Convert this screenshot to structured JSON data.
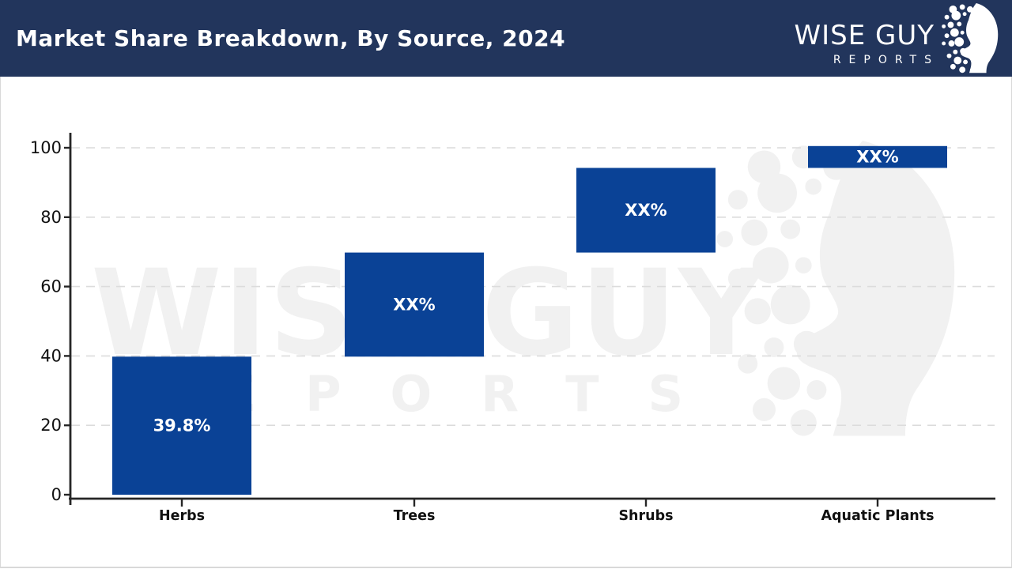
{
  "header": {
    "title": "Market Share Breakdown, By Source, 2024",
    "logo": {
      "line1": "WISE GUY",
      "line2": "REPORTS"
    }
  },
  "watermark": {
    "line1": "WISE GUY",
    "line2": "REPORTS"
  },
  "chart_data": {
    "type": "bar",
    "subtype": "waterfall",
    "title": "Market Share Breakdown, By Source, 2024",
    "categories": [
      "Herbs",
      "Trees",
      "Shrubs",
      "Aquatic Plants"
    ],
    "series": [
      {
        "name": "Market share (%)",
        "segments": [
          {
            "category": "Herbs",
            "start": 0,
            "end": 39.8,
            "label": "39.8%"
          },
          {
            "category": "Trees",
            "start": 39.8,
            "end": 69.8,
            "label": "XX%"
          },
          {
            "category": "Shrubs",
            "start": 69.8,
            "end": 94.2,
            "label": "XX%"
          },
          {
            "category": "Aquatic Plants",
            "start": 94.2,
            "end": 100.5,
            "label": "XX%"
          }
        ]
      }
    ],
    "xlabel": "",
    "ylabel": "",
    "yticks": [
      0,
      20,
      40,
      60,
      80,
      100
    ],
    "ylim": [
      0,
      105
    ],
    "grid": "horizontal-dashed",
    "legend": "none",
    "bar_color": "#0A4296",
    "bar_label_color": "#FFFFFF"
  },
  "colors": {
    "header_bg": "#22355C",
    "bar": "#0A4296",
    "axis": "#262626",
    "grid": "#DCDCDC",
    "watermark": "#F1F1F1",
    "page_bg": "#FFFFFF"
  }
}
